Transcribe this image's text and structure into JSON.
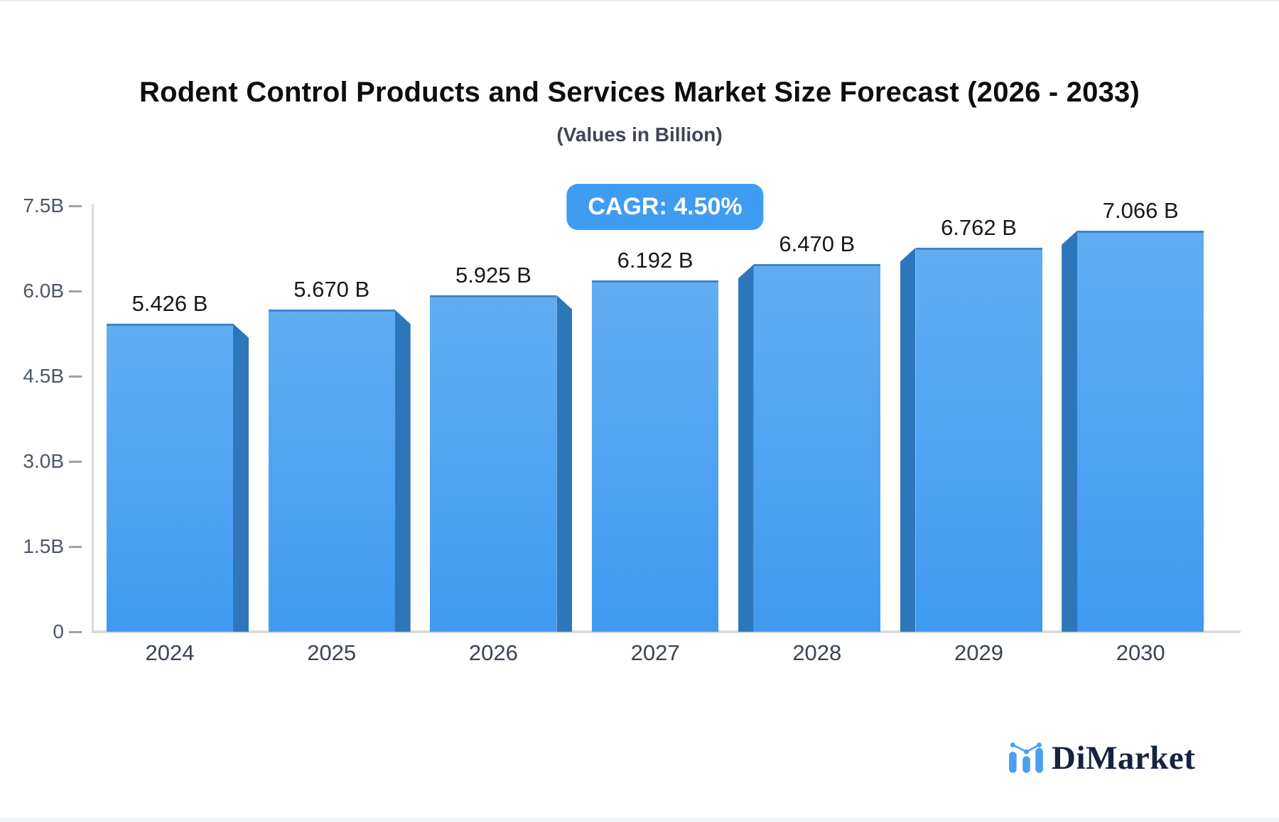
{
  "title": "Rodent Control Products and Services Market Size Forecast (2026 - 2033)",
  "subtitle": "(Values in Billion)",
  "badge": {
    "label": "CAGR: 4.50%"
  },
  "logo": {
    "name": "DiMarket",
    "icon": "bar-line-chart-icon"
  },
  "chart_data": {
    "type": "bar",
    "title": "Rodent Control Products and Services Market Size Forecast (2026 - 2033)",
    "subtitle": "(Values in Billion)",
    "categories": [
      "2024",
      "2025",
      "2026",
      "2027",
      "2028",
      "2029",
      "2030"
    ],
    "values": [
      5.426,
      5.67,
      5.925,
      6.192,
      6.47,
      6.762,
      7.066
    ],
    "value_labels": [
      "5.426 B",
      "5.670 B",
      "5.925 B",
      "6.192 B",
      "6.470 B",
      "6.762 B",
      "7.066 B"
    ],
    "xlabel": "",
    "ylabel": "",
    "ylim": [
      0,
      7.5
    ],
    "yticks": [
      {
        "value": 7.5,
        "label": "7.5B"
      },
      {
        "value": 6.0,
        "label": "6.0B"
      },
      {
        "value": 4.5,
        "label": "4.5B"
      },
      {
        "value": 3.0,
        "label": "3.0B"
      },
      {
        "value": 1.5,
        "label": "1.5B"
      },
      {
        "value": 0,
        "label": "0"
      }
    ],
    "grid": false,
    "legend": false,
    "annotation": "CAGR: 4.50%",
    "bar_style": "3d-bevel-toward-center"
  },
  "colors": {
    "bar_face_top": "#61adf2",
    "bar_face_bottom": "#3f9af0",
    "bar_top_edge": "#3c86cf",
    "bar_side": "#2e76ba",
    "badge_bg": "#3e9cf1",
    "axis_line": "#d8dbdf",
    "tick_dash": "#9aa3ae",
    "y_label": "#4d5866",
    "x_label": "#3a4452",
    "value_label": "#16191d",
    "title": "#0b0d10",
    "subtitle": "#3d4654",
    "logo_blue": "#4b9ff3",
    "logo_navy": "#16223f"
  }
}
